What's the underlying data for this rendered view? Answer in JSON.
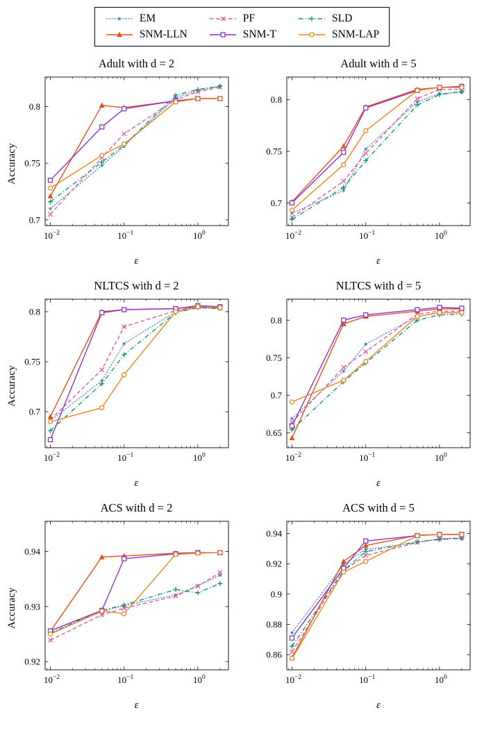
{
  "figure": {
    "background": "#ffffff",
    "text_color": "#000000"
  },
  "legend": {
    "position": "top-center",
    "items": [
      {
        "label": "EM",
        "color": "#5c85c6",
        "dash": "dotted",
        "marker": "dot-filled"
      },
      {
        "label": "PF",
        "color": "#df5a9d",
        "dash": "dashed",
        "marker": "x"
      },
      {
        "label": "SLD",
        "color": "#15916c",
        "dash": "dashdot",
        "marker": "plus"
      },
      {
        "label": "SNM-LLN",
        "color": "#e2511a",
        "dash": "solid",
        "marker": "triangle-filled"
      },
      {
        "label": "SNM-T",
        "color": "#8e2fd1",
        "dash": "solid",
        "marker": "square-open"
      },
      {
        "label": "SNM-LAP",
        "color": "#ee8420",
        "dash": "solid",
        "marker": "circle-open"
      }
    ]
  },
  "chart_data": [
    {
      "type": "line",
      "title": "Adult with d = 2",
      "xlabel": "ε",
      "ylabel": "Accuracy",
      "xscale": "log",
      "xlim": [
        0.0085,
        2.6
      ],
      "ylim": [
        0.695,
        0.826
      ],
      "x": [
        0.01,
        0.05,
        0.1,
        0.5,
        1,
        2
      ],
      "xticks": [
        {
          "v": 0.01,
          "base": "10",
          "exp": "−2"
        },
        {
          "v": 0.1,
          "base": "10",
          "exp": "−1"
        },
        {
          "v": 1,
          "base": "10",
          "exp": "0"
        }
      ],
      "yticks": [
        0.7,
        0.75,
        0.8
      ],
      "ytick_labels": [
        "0.7",
        "0.75",
        "0.8"
      ],
      "grid": false,
      "series": [
        {
          "name": "EM",
          "values": [
            0.71,
            0.748,
            0.765,
            0.808,
            0.814,
            0.818
          ]
        },
        {
          "name": "PF",
          "values": [
            0.705,
            0.755,
            0.776,
            0.806,
            0.813,
            0.817
          ]
        },
        {
          "name": "SLD",
          "values": [
            0.716,
            0.751,
            0.766,
            0.81,
            0.815,
            0.818
          ]
        },
        {
          "name": "SNM-LLN",
          "values": [
            0.721,
            0.801,
            0.799,
            0.805,
            0.807,
            0.807
          ]
        },
        {
          "name": "SNM-T",
          "values": [
            0.735,
            0.782,
            0.798,
            0.805,
            0.807,
            0.807
          ]
        },
        {
          "name": "SNM-LAP",
          "values": [
            0.728,
            0.757,
            0.767,
            0.804,
            0.807,
            0.807
          ]
        }
      ]
    },
    {
      "type": "line",
      "title": "Adult with d = 5",
      "xlabel": "ε",
      "ylabel": "",
      "xscale": "log",
      "xlim": [
        0.0085,
        2.6
      ],
      "ylim": [
        0.678,
        0.822
      ],
      "x": [
        0.01,
        0.05,
        0.1,
        0.5,
        1,
        2
      ],
      "xticks": [
        {
          "v": 0.01,
          "base": "10",
          "exp": "−2"
        },
        {
          "v": 0.1,
          "base": "10",
          "exp": "−1"
        },
        {
          "v": 1,
          "base": "10",
          "exp": "0"
        }
      ],
      "yticks": [
        0.7,
        0.75,
        0.8
      ],
      "ytick_labels": [
        "0.7",
        "0.75",
        "0.8"
      ],
      "grid": false,
      "series": [
        {
          "name": "EM",
          "values": [
            0.69,
            0.712,
            0.752,
            0.798,
            0.806,
            0.807
          ]
        },
        {
          "name": "PF",
          "values": [
            0.686,
            0.721,
            0.748,
            0.801,
            0.81,
            0.81
          ]
        },
        {
          "name": "SLD",
          "values": [
            0.684,
            0.715,
            0.741,
            0.795,
            0.805,
            0.808
          ]
        },
        {
          "name": "SNM-LLN",
          "values": [
            0.701,
            0.755,
            0.793,
            0.81,
            0.812,
            0.812
          ]
        },
        {
          "name": "SNM-T",
          "values": [
            0.7,
            0.749,
            0.792,
            0.809,
            0.812,
            0.813
          ]
        },
        {
          "name": "SNM-LAP",
          "values": [
            0.693,
            0.737,
            0.77,
            0.809,
            0.812,
            0.812
          ]
        }
      ]
    },
    {
      "type": "line",
      "title": "NLTCS with d = 2",
      "xlabel": "ε",
      "ylabel": "Accuracy",
      "xscale": "log",
      "xlim": [
        0.0085,
        2.6
      ],
      "ylim": [
        0.664,
        0.8125
      ],
      "x": [
        0.01,
        0.05,
        0.1,
        0.5,
        1,
        2
      ],
      "xticks": [
        {
          "v": 0.01,
          "base": "10",
          "exp": "−2"
        },
        {
          "v": 0.1,
          "base": "10",
          "exp": "−1"
        },
        {
          "v": 1,
          "base": "10",
          "exp": "0"
        }
      ],
      "yticks": [
        0.7,
        0.75,
        0.8
      ],
      "ytick_labels": [
        "0.7",
        "0.75",
        "0.8"
      ],
      "grid": false,
      "series": [
        {
          "name": "EM",
          "values": [
            0.691,
            0.731,
            0.768,
            0.8,
            0.804,
            0.803
          ]
        },
        {
          "name": "PF",
          "values": [
            0.692,
            0.742,
            0.785,
            0.801,
            0.805,
            0.804
          ]
        },
        {
          "name": "SLD",
          "values": [
            0.681,
            0.728,
            0.757,
            0.799,
            0.804,
            0.803
          ]
        },
        {
          "name": "SNM-LLN",
          "values": [
            0.695,
            0.8,
            0.802,
            0.803,
            0.805,
            0.804
          ]
        },
        {
          "name": "SNM-T",
          "values": [
            0.672,
            0.799,
            0.802,
            0.803,
            0.806,
            0.805
          ]
        },
        {
          "name": "SNM-LAP",
          "values": [
            0.69,
            0.704,
            0.737,
            0.8,
            0.805,
            0.804
          ]
        }
      ]
    },
    {
      "type": "line",
      "title": "NLTCS with d = 5",
      "xlabel": "ε",
      "ylabel": "",
      "xscale": "log",
      "xlim": [
        0.0085,
        2.6
      ],
      "ylim": [
        0.63,
        0.828
      ],
      "x": [
        0.01,
        0.05,
        0.1,
        0.5,
        1,
        2
      ],
      "xticks": [
        {
          "v": 0.01,
          "base": "10",
          "exp": "−2"
        },
        {
          "v": 0.1,
          "base": "10",
          "exp": "−1"
        },
        {
          "v": 1,
          "base": "10",
          "exp": "0"
        }
      ],
      "yticks": [
        0.65,
        0.7,
        0.75,
        0.8
      ],
      "ytick_labels": [
        "0.65",
        "0.7",
        "0.75",
        "0.8"
      ],
      "grid": false,
      "series": [
        {
          "name": "EM",
          "values": [
            0.669,
            0.732,
            0.768,
            0.805,
            0.81,
            0.81
          ]
        },
        {
          "name": "PF",
          "values": [
            0.664,
            0.737,
            0.758,
            0.808,
            0.812,
            0.812
          ]
        },
        {
          "name": "SLD",
          "values": [
            0.654,
            0.718,
            0.743,
            0.8,
            0.807,
            0.808
          ]
        },
        {
          "name": "SNM-LLN",
          "values": [
            0.643,
            0.795,
            0.805,
            0.812,
            0.815,
            0.815
          ]
        },
        {
          "name": "SNM-T",
          "values": [
            0.659,
            0.8,
            0.807,
            0.814,
            0.817,
            0.816
          ]
        },
        {
          "name": "SNM-LAP",
          "values": [
            0.691,
            0.72,
            0.745,
            0.805,
            0.81,
            0.81
          ]
        }
      ]
    },
    {
      "type": "line",
      "title": "ACS with d = 2",
      "xlabel": "ε",
      "ylabel": "Accuracy",
      "xscale": "log",
      "xlim": [
        0.0085,
        2.6
      ],
      "ylim": [
        0.9185,
        0.9455
      ],
      "x": [
        0.01,
        0.05,
        0.1,
        0.5,
        1,
        2
      ],
      "xticks": [
        {
          "v": 0.01,
          "base": "10",
          "exp": "−2"
        },
        {
          "v": 0.1,
          "base": "10",
          "exp": "−1"
        },
        {
          "v": 1,
          "base": "10",
          "exp": "0"
        }
      ],
      "yticks": [
        0.92,
        0.93,
        0.94
      ],
      "ytick_labels": [
        "0.92",
        "0.93",
        "0.94"
      ],
      "grid": false,
      "series": [
        {
          "name": "EM",
          "values": [
            0.9251,
            0.9291,
            0.9302,
            0.9321,
            0.9338,
            0.9357
          ]
        },
        {
          "name": "PF",
          "values": [
            0.9239,
            0.9285,
            0.9297,
            0.9319,
            0.9337,
            0.9362
          ]
        },
        {
          "name": "SLD",
          "values": [
            0.9252,
            0.9293,
            0.9303,
            0.9331,
            0.9325,
            0.9342
          ]
        },
        {
          "name": "SNM-LLN",
          "values": [
            0.9255,
            0.939,
            0.9392,
            0.9397,
            0.9398,
            0.9398
          ]
        },
        {
          "name": "SNM-T",
          "values": [
            0.9256,
            0.9293,
            0.9387,
            0.9396,
            0.9398,
            0.9398
          ]
        },
        {
          "name": "SNM-LAP",
          "values": [
            0.925,
            0.9292,
            0.9287,
            0.9395,
            0.9397,
            0.9398
          ]
        }
      ]
    },
    {
      "type": "line",
      "title": "ACS with d = 5",
      "xlabel": "ε",
      "ylabel": "",
      "xscale": "log",
      "xlim": [
        0.0085,
        2.6
      ],
      "ylim": [
        0.85,
        0.948
      ],
      "x": [
        0.01,
        0.05,
        0.1,
        0.5,
        1,
        2
      ],
      "xticks": [
        {
          "v": 0.01,
          "base": "10",
          "exp": "−2"
        },
        {
          "v": 0.1,
          "base": "10",
          "exp": "−1"
        },
        {
          "v": 1,
          "base": "10",
          "exp": "0"
        }
      ],
      "yticks": [
        0.86,
        0.88,
        0.9,
        0.92,
        0.94
      ],
      "ytick_labels": [
        "0.86",
        "0.88",
        "0.9",
        "0.92",
        "0.94"
      ],
      "grid": false,
      "series": [
        {
          "name": "EM",
          "values": [
            0.8745,
            0.9195,
            0.9295,
            0.934,
            0.9365,
            0.937
          ]
        },
        {
          "name": "PF",
          "values": [
            0.862,
            0.9155,
            0.9255,
            0.934,
            0.9365,
            0.9368
          ]
        },
        {
          "name": "SLD",
          "values": [
            0.8655,
            0.9155,
            0.928,
            0.9345,
            0.936,
            0.9368
          ]
        },
        {
          "name": "SNM-LLN",
          "values": [
            0.858,
            0.9215,
            0.932,
            0.9388,
            0.9393,
            0.9393
          ]
        },
        {
          "name": "SNM-T",
          "values": [
            0.871,
            0.917,
            0.935,
            0.9385,
            0.9393,
            0.9393
          ]
        },
        {
          "name": "SNM-LAP",
          "values": [
            0.8575,
            0.9145,
            0.9215,
            0.9385,
            0.9392,
            0.9392
          ]
        }
      ]
    }
  ]
}
